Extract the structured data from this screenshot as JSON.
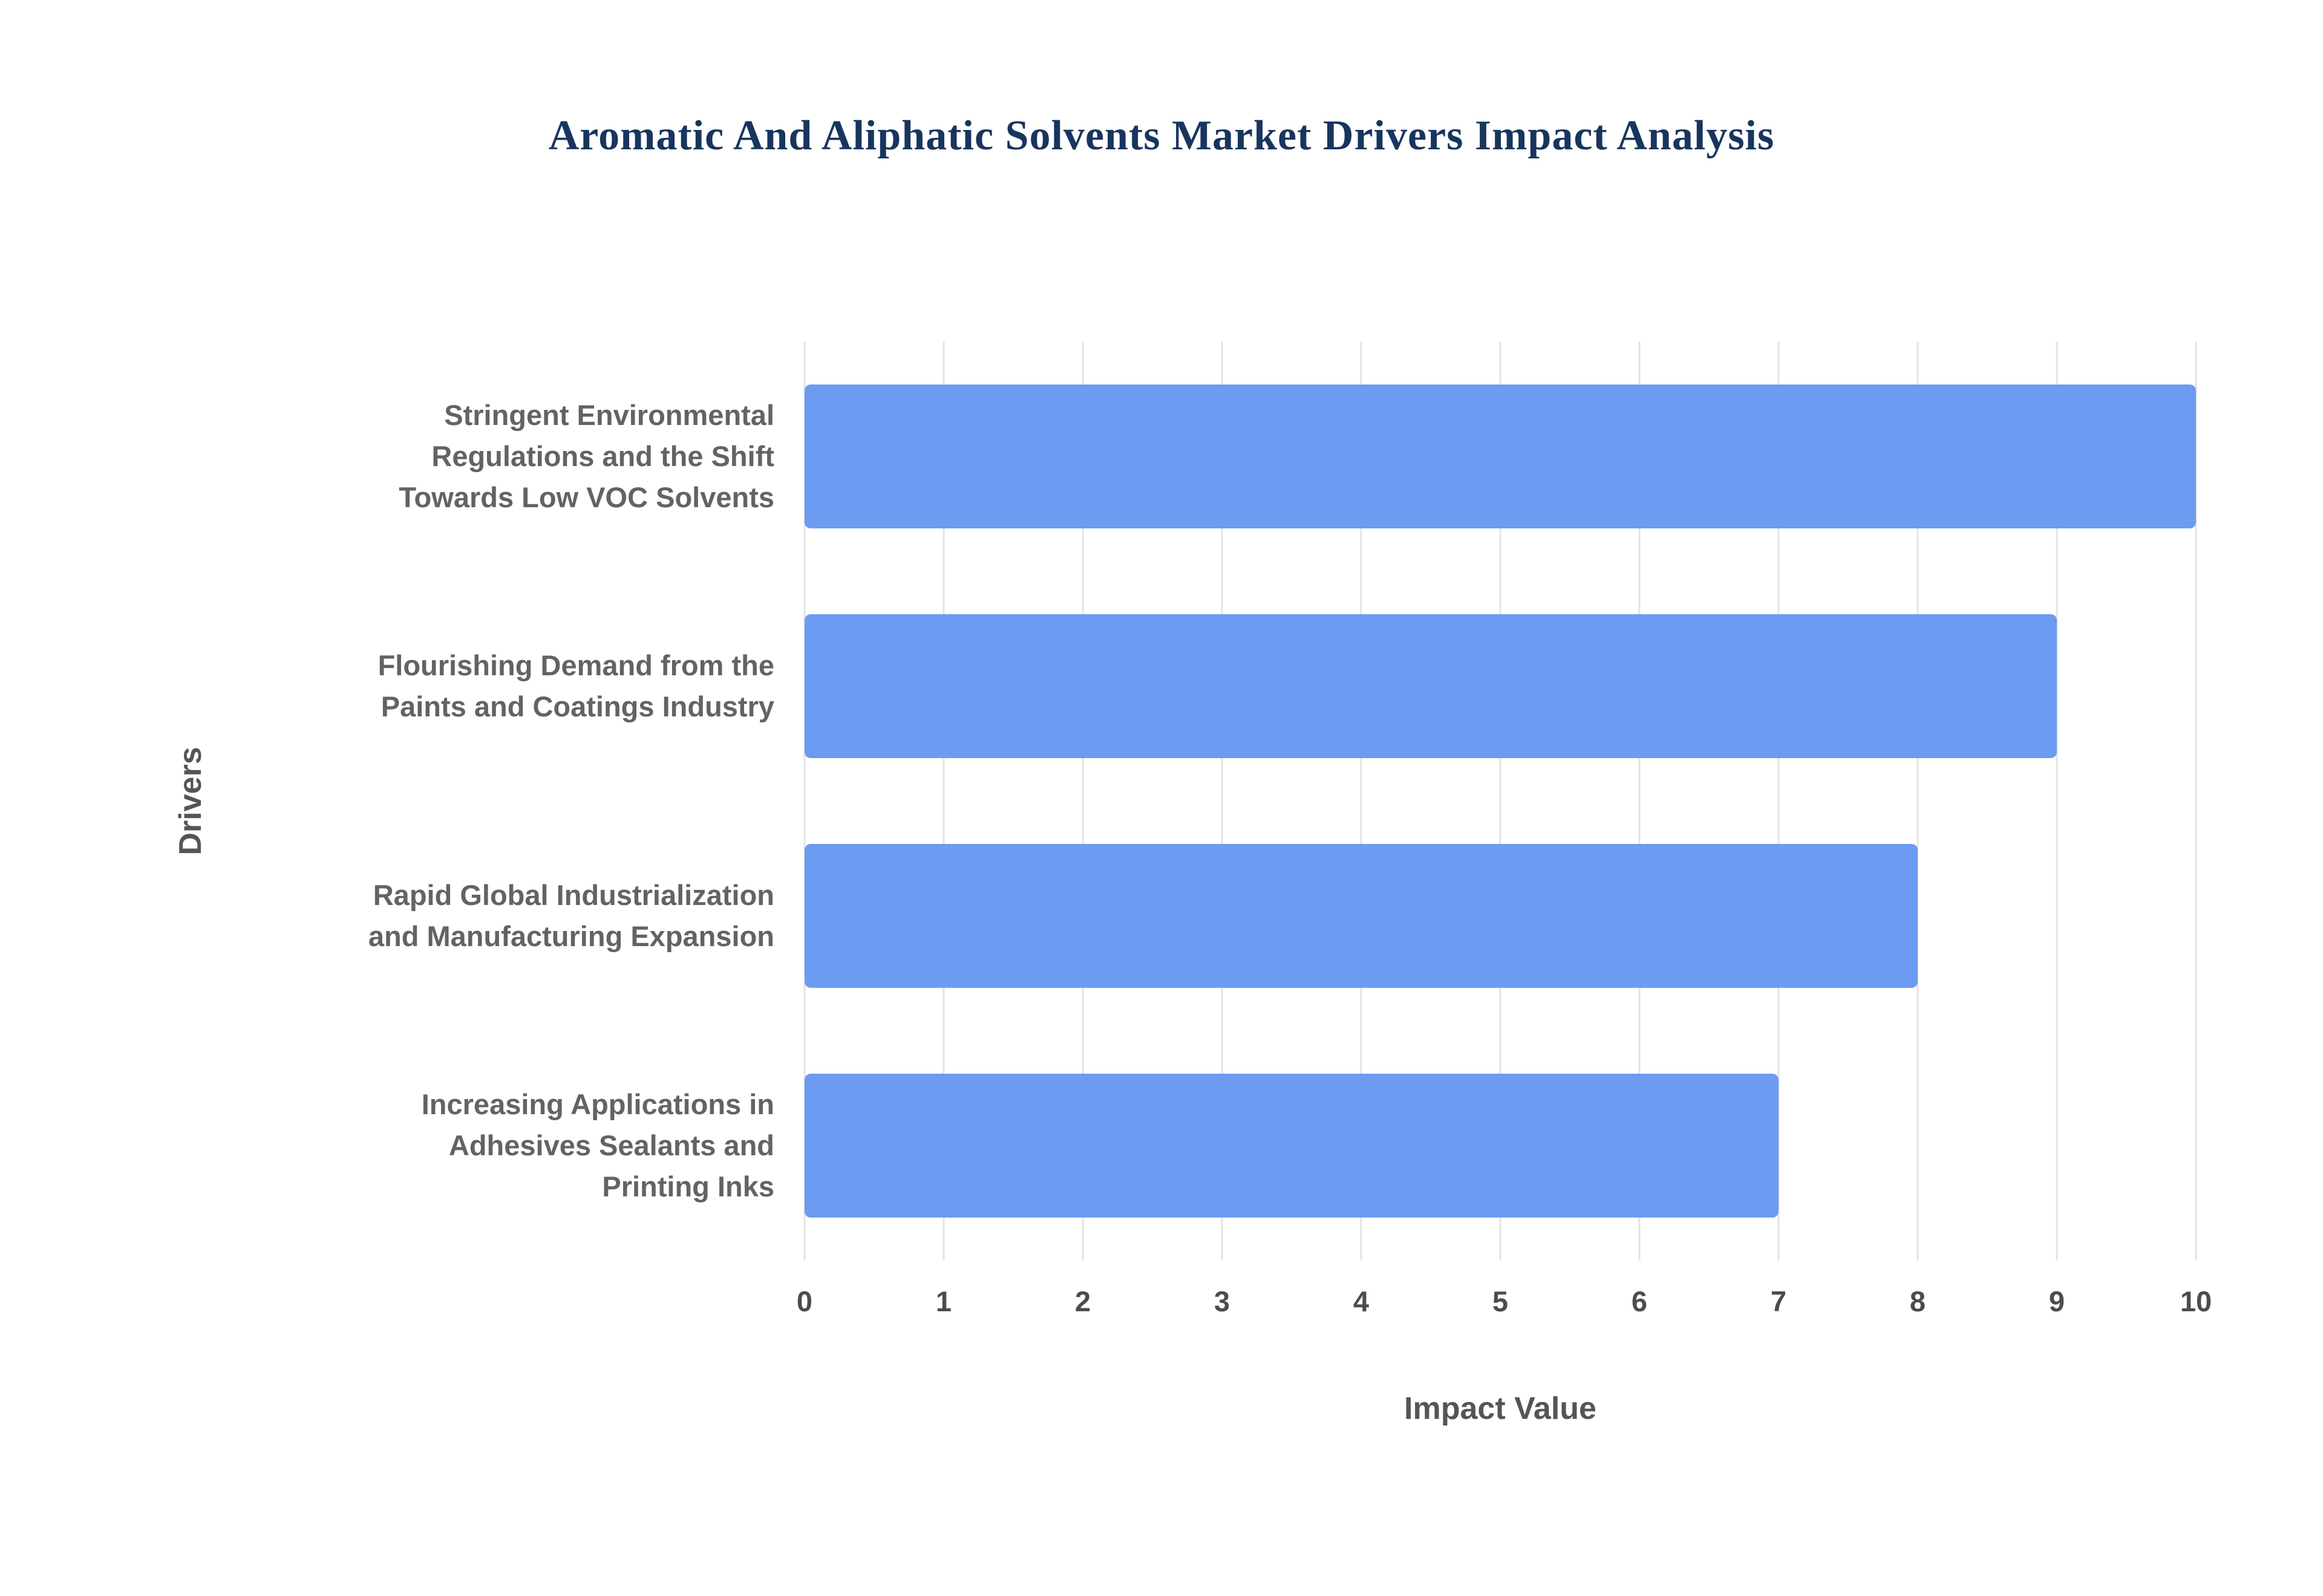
{
  "chart_data": {
    "type": "bar",
    "orientation": "horizontal",
    "title": "Aromatic And Aliphatic Solvents Market Drivers Impact Analysis",
    "categories": [
      "Stringent Environmental Regulations and the Shift Towards Low VOC Solvents",
      "Flourishing Demand from the Paints and Coatings Industry",
      "Rapid Global Industrialization and Manufacturing Expansion",
      "Increasing Applications in Adhesives Sealants and Printing Inks"
    ],
    "categories_wrapped": [
      [
        "Stringent Environmental",
        "Regulations and the Shift",
        "Towards Low VOC Solvents"
      ],
      [
        "Flourishing Demand from the",
        "Paints and Coatings Industry"
      ],
      [
        "Rapid Global Industrialization",
        "and Manufacturing Expansion"
      ],
      [
        "Increasing Applications in",
        "Adhesives Sealants and",
        "Printing Inks"
      ]
    ],
    "values": [
      10,
      9,
      8,
      7
    ],
    "xlabel": "Impact Value",
    "ylabel": "Drivers",
    "xlim": [
      0,
      10
    ],
    "tick_step": 1,
    "tick_labels": [
      "0",
      "1",
      "2",
      "3",
      "4",
      "5",
      "6",
      "7",
      "8",
      "9",
      "10"
    ],
    "grid": true,
    "legend": "none",
    "bar_color": "#6d9bf1",
    "title_color": "#17355e",
    "label_color": "#636363",
    "gridline_color": "#e3e3e3"
  }
}
